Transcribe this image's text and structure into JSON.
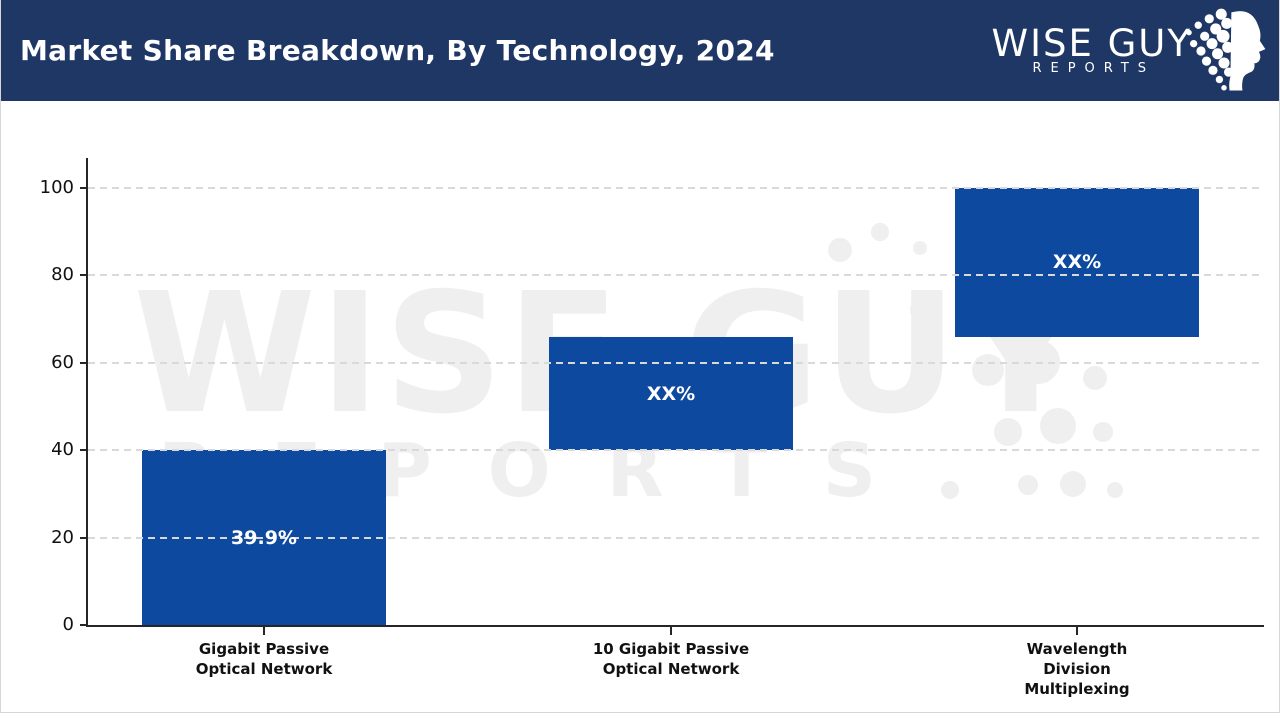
{
  "header": {
    "title": "Market Share Breakdown, By Technology, 2024",
    "logo": {
      "name": "WISE GUY",
      "sub": "REPORTS"
    }
  },
  "watermark": {
    "line1": "WISE GUY",
    "line2": "REPORTS"
  },
  "chart_data": {
    "type": "bar",
    "subtype": "floating-segment-waterfall",
    "title": "Market Share Breakdown, By Technology, 2024",
    "categories": [
      [
        "Gigabit Passive",
        "Optical Network"
      ],
      [
        "10 Gigabit Passive",
        "Optical Network"
      ],
      [
        "Wavelength",
        "Division",
        "Multiplexing"
      ]
    ],
    "segments": [
      {
        "category": "Gigabit Passive Optical Network",
        "start": 0,
        "end": 39.9,
        "label": "39.9%"
      },
      {
        "category": "10 Gigabit Passive Optical Network",
        "start": 39.9,
        "end": 65.9,
        "label": "XX%"
      },
      {
        "category": "Wavelength Division Multiplexing",
        "start": 65.9,
        "end": 100,
        "label": "XX%"
      }
    ],
    "yticks": [
      0,
      20,
      40,
      60,
      80,
      100
    ],
    "ylim": [
      0,
      106
    ],
    "xlabel": "",
    "ylabel": "",
    "grid": "horizontal dashed gridlines drawn above bars",
    "legend": "none",
    "colors": {
      "bar": "#0d499e",
      "bar_label": "#ffffff",
      "grid": "#d9d9d9",
      "axis": "#262626",
      "header_bg": "#1f3765",
      "text": "#111111",
      "watermark": "#efefef"
    }
  }
}
